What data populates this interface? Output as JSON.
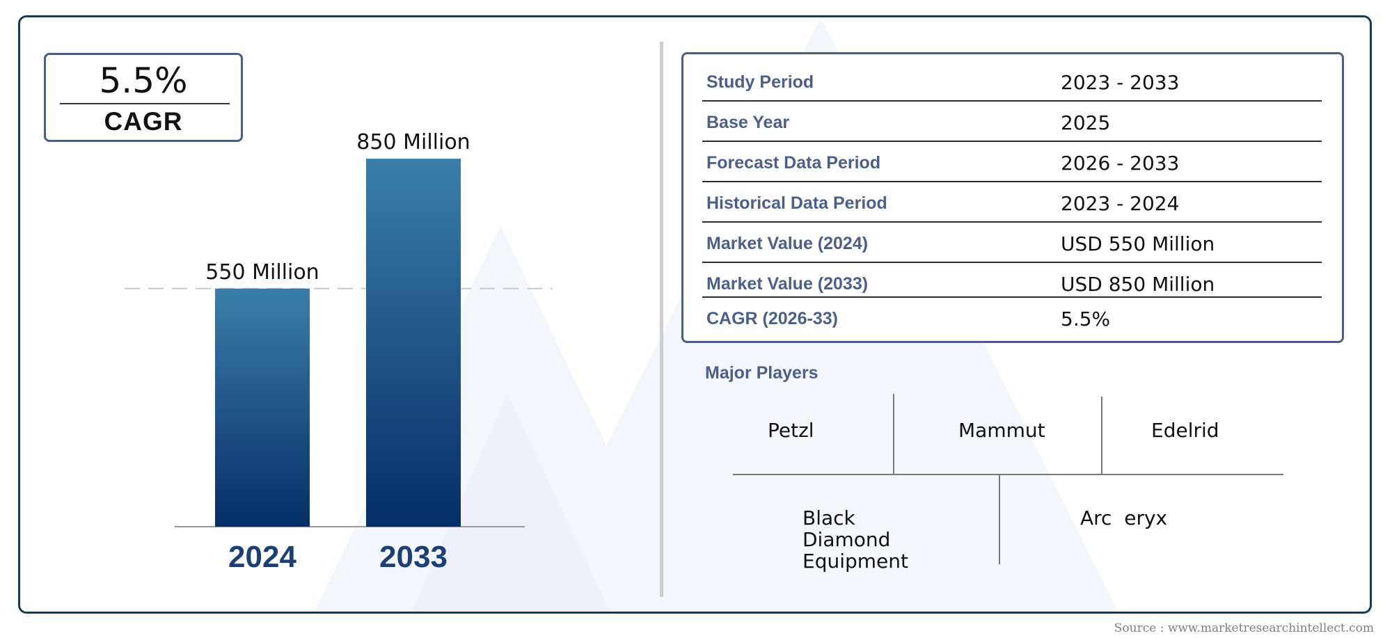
{
  "cagr_box": {
    "value": "5.5%",
    "label": "CAGR"
  },
  "chart_data": {
    "type": "bar",
    "categories": [
      "2024",
      "2033"
    ],
    "values": [
      550,
      850
    ],
    "value_labels": [
      "550 Million",
      "850 Million"
    ],
    "ylim": [
      0,
      900
    ],
    "grid": false,
    "reference_line_value": 550,
    "colors": {
      "bar_top": "#3a7ea9",
      "bar_bottom": "#062d66",
      "category_label": "#1c3f76"
    }
  },
  "summary_table": {
    "rows": [
      {
        "label": "Study Period",
        "value": "2023 - 2033"
      },
      {
        "label": "Base Year",
        "value": "2025"
      },
      {
        "label": "Forecast Data Period",
        "value": "2026 - 2033"
      },
      {
        "label": "Historical Data Period",
        "value": "2023 - 2024"
      },
      {
        "label": "Market Value (2024)",
        "value": "USD 550 Million"
      },
      {
        "label": "Market Value (2033)",
        "value": "USD 850 Million"
      },
      {
        "label": "CAGR (2026-33)",
        "value": "5.5%"
      }
    ]
  },
  "major_players": {
    "title": "Major Players",
    "top_row": [
      "Petzl",
      "Mammut",
      "Edelrid"
    ],
    "bottom_row": [
      "Black Diamond Equipment",
      "Arc  eryx"
    ]
  },
  "source": "Source : www.marketresearchintellect.com"
}
